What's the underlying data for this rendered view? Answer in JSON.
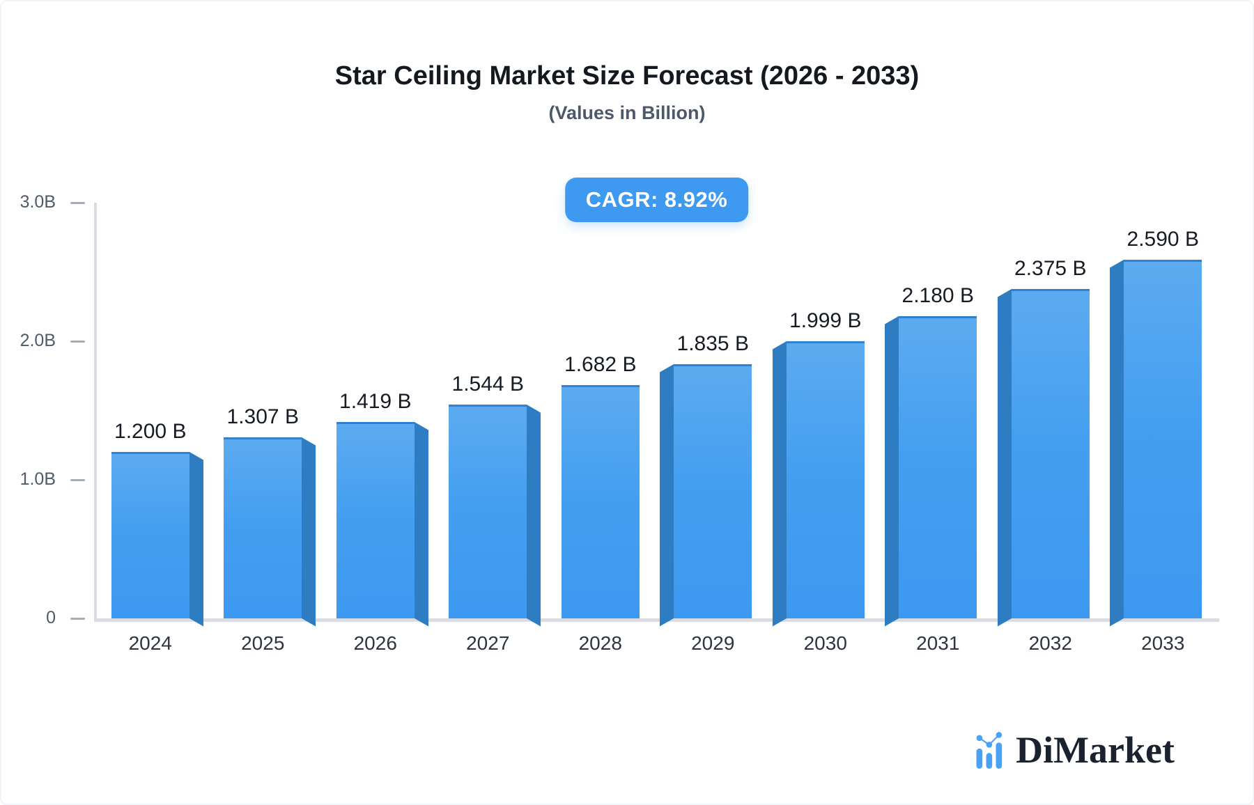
{
  "title": "Star Ceiling Market Size Forecast (2026 - 2033)",
  "subtitle": "(Values in Billion)",
  "badge": {
    "label": "CAGR: 8.92%",
    "bg": "#3d9af0"
  },
  "logo": {
    "text": "DiMarket",
    "icon": "bar-chart-logo-icon",
    "icon_color": "#4aa2f5",
    "text_color": "#1a2230"
  },
  "colors": {
    "bar_face_top": "#5cabf0",
    "bar_face_bottom": "#3d99f0",
    "bar_side": "#2e7cc2",
    "axis": "#d9dce2",
    "tick_text": "#4f5b68",
    "value_text": "#161b24"
  },
  "chart_data": {
    "type": "bar",
    "title": "Star Ceiling Market Size Forecast (2026 - 2033)",
    "subtitle": "(Values in Billion)",
    "categories": [
      "2024",
      "2025",
      "2026",
      "2027",
      "2028",
      "2029",
      "2030",
      "2031",
      "2032",
      "2033"
    ],
    "values": [
      1.2,
      1.307,
      1.419,
      1.544,
      1.682,
      1.835,
      1.999,
      2.18,
      2.375,
      2.59
    ],
    "value_labels": [
      "1.200 B",
      "1.307 B",
      "1.419 B",
      "1.544 B",
      "1.682 B",
      "1.835 B",
      "1.999 B",
      "2.180 B",
      "2.375 B",
      "2.590 B"
    ],
    "xlabel": "",
    "ylabel": "",
    "ylim": [
      0,
      3
    ],
    "yticks": [
      {
        "value": 0,
        "label": "0"
      },
      {
        "value": 1,
        "label": "1.0B"
      },
      {
        "value": 2,
        "label": "2.0B"
      },
      {
        "value": 3,
        "label": "3.0B"
      }
    ],
    "grid": false,
    "legend": null,
    "annotation": "CAGR: 8.92%",
    "style": "3d-bars, perspective vanishing toward center",
    "perspective_center_index": 4
  }
}
